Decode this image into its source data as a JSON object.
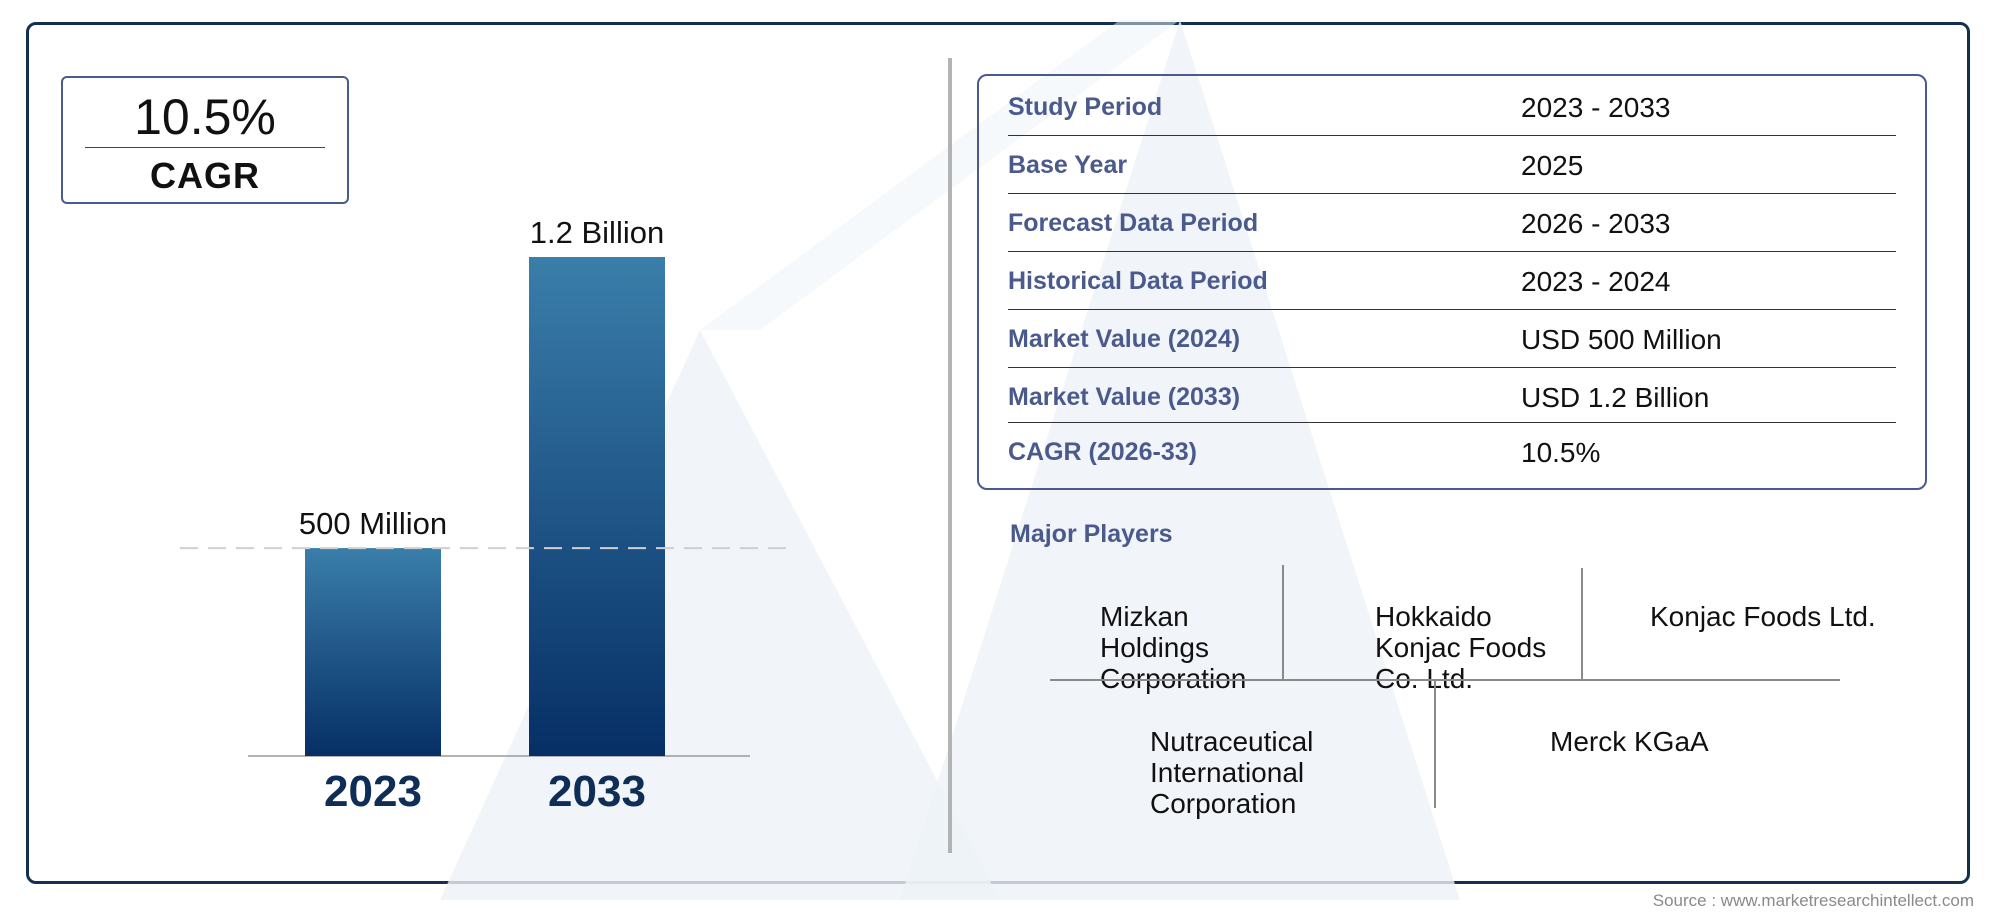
{
  "chart_data": {
    "type": "bar",
    "categories": [
      "2023",
      "2033"
    ],
    "values": [
      500,
      1200
    ],
    "value_unit": "Million",
    "data_labels": [
      "500 Million",
      "1.2 Billion"
    ],
    "ylim": [
      0,
      1200
    ],
    "reference_line_value": 500,
    "bar_color_top": "#3a7eaa",
    "bar_color_bottom": "#062f66",
    "title": "",
    "xlabel": "",
    "ylabel": ""
  },
  "cagr_box": {
    "value": "10.5%",
    "label": "CAGR"
  },
  "info_table": [
    {
      "label": "Study Period",
      "value": "2023 - 2033"
    },
    {
      "label": "Base Year",
      "value": "2025"
    },
    {
      "label": "Forecast Data Period",
      "value": "2026 - 2033"
    },
    {
      "label": "Historical Data Period",
      "value": "2023 - 2024"
    },
    {
      "label": "Market Value (2024)",
      "value": "USD 500 Million"
    },
    {
      "label": "Market Value (2033)",
      "value": "USD 1.2 Billion"
    },
    {
      "label": "CAGR (2026-33)",
      "value": "10.5%"
    }
  ],
  "players": {
    "title": "Major Players",
    "items": [
      "Mizkan Holdings Corporation",
      "Hokkaido Konjac Foods Co. Ltd.",
      "Konjac Foods Ltd.",
      "Nutraceutical International Corporation",
      "Merck KGaA"
    ]
  },
  "source": "Source : www.marketresearchintellect.com",
  "colors": {
    "frame": "#14304f",
    "accent": "#4a5a8c",
    "year_label": "#0e2d57"
  }
}
